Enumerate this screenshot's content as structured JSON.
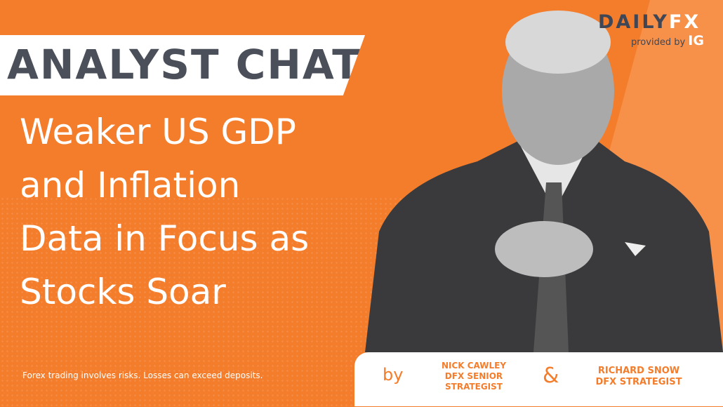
{
  "banner": {
    "title": "ANALYST CHAT"
  },
  "headline": {
    "lines": [
      "Weaker US GDP",
      "and Inflation",
      "Data in Focus as",
      "Stocks Soar"
    ]
  },
  "disclaimer": "Forex trading involves risks. Losses can exceed deposits.",
  "logo": {
    "daily": "DAILY",
    "fx": "FX",
    "provided_by": "provided by",
    "ig": "IG"
  },
  "authors": {
    "by": "by",
    "amp": "&",
    "author1": [
      "NICK CAWLEY",
      "DFX SENIOR",
      "STRATEGIST"
    ],
    "author2": [
      "RICHARD SNOW",
      "DFX STRATEGIST"
    ]
  },
  "colors": {
    "brand_orange": "#f47d2c",
    "dark_gray": "#4a4f5a"
  }
}
